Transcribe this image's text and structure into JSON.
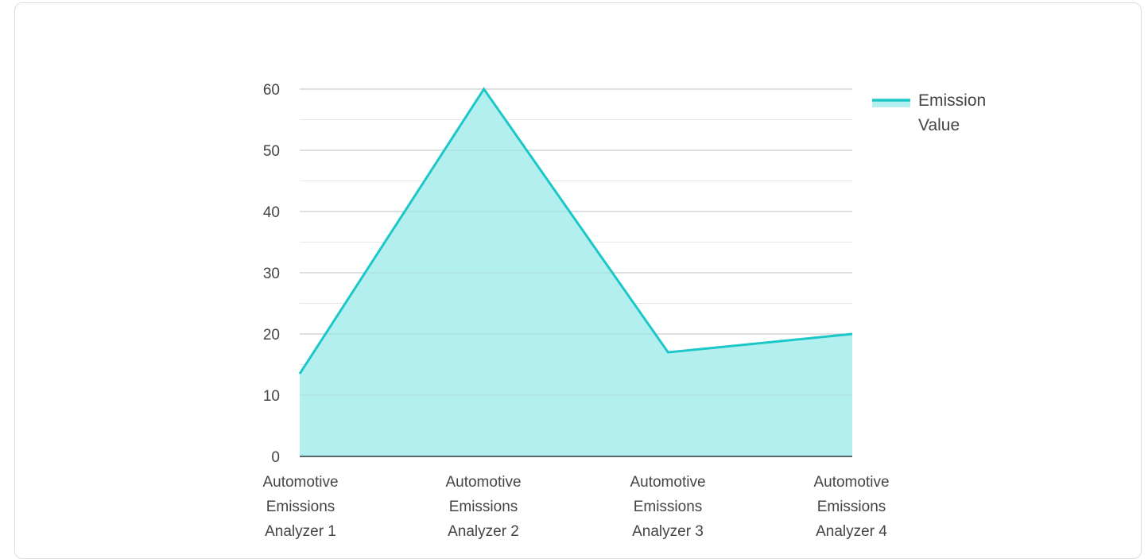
{
  "chart_data": {
    "type": "area",
    "categories": [
      "Automotive Emissions Analyzer 1",
      "Automotive Emissions Analyzer 2",
      "Automotive Emissions Analyzer 3",
      "Automotive Emissions Analyzer 4"
    ],
    "category_lines": [
      [
        "Automotive",
        "Emissions",
        "Analyzer 1"
      ],
      [
        "Automotive",
        "Emissions",
        "Analyzer 2"
      ],
      [
        "Automotive",
        "Emissions",
        "Analyzer 3"
      ],
      [
        "Automotive",
        "Emissions",
        "Analyzer 4"
      ]
    ],
    "series": [
      {
        "name": "Emission Value",
        "values": [
          13.5,
          60,
          17,
          20
        ]
      }
    ],
    "legend": {
      "position": "top-right",
      "lines": [
        "Emission",
        "Value"
      ]
    },
    "ylim": [
      0,
      60
    ],
    "yticks": [
      0,
      10,
      20,
      30,
      40,
      50,
      60
    ],
    "minor_grid": true,
    "grid": true,
    "colors": {
      "line": "#1cc7c7",
      "fill": "#b2efee",
      "grid_major": "#c8c8c8",
      "grid_minor": "#e6e6e6",
      "axis": "#333333",
      "text": "#444444"
    }
  }
}
